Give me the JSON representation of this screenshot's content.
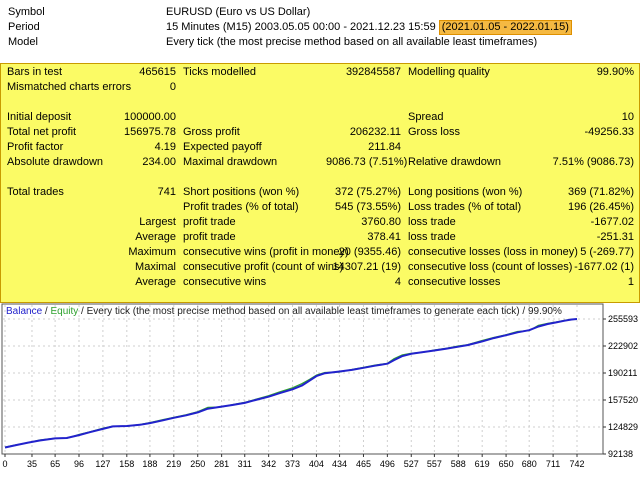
{
  "header": {
    "symbol": {
      "label": "Symbol",
      "value": "EURUSD (Euro vs US Dollar)"
    },
    "period": {
      "label": "Period",
      "value_main": "15 Minutes (M15) 2003.05.05 00:00 - 2021.12.23 15:59 ",
      "value_highlight": "(2021.01.05 - 2022.01.15)"
    },
    "model": {
      "label": "Model",
      "value": "Every tick (the most precise method based on all available least timeframes)"
    }
  },
  "stats": {
    "rows": [
      [
        "Bars in test",
        "465615",
        "Ticks modelled",
        "392845587",
        "Modelling quality",
        "99.90%"
      ],
      [
        "Mismatched charts errors",
        "0",
        "",
        "",
        "",
        ""
      ],
      [
        "",
        "",
        "",
        "",
        "",
        ""
      ],
      [
        "Initial deposit",
        "100000.00",
        "",
        "",
        "Spread",
        "10"
      ],
      [
        "Total net profit",
        "156975.78",
        "Gross profit",
        "206232.11",
        "Gross loss",
        "-49256.33"
      ],
      [
        "Profit factor",
        "4.19",
        "Expected payoff",
        "211.84",
        "",
        ""
      ],
      [
        "Absolute drawdown",
        "234.00",
        "Maximal drawdown",
        "9086.73 (7.51%)",
        "Relative drawdown",
        "7.51% (9086.73)"
      ],
      [
        "",
        "",
        "",
        "",
        "",
        ""
      ],
      [
        "Total trades",
        "741",
        "Short positions (won %)",
        "372 (75.27%)",
        "Long positions (won %)",
        "369 (71.82%)"
      ],
      [
        "",
        "",
        "Profit trades (% of total)",
        "545 (73.55%)",
        "Loss trades (% of total)",
        "196 (26.45%)"
      ],
      [
        "",
        "Largest",
        "profit trade",
        "3760.80",
        "loss trade",
        "-1677.02"
      ],
      [
        "",
        "Average",
        "profit trade",
        "378.41",
        "loss trade",
        "-251.31"
      ],
      [
        "",
        "Maximum",
        "consecutive wins (profit in money)",
        "20 (9355.46)",
        "consecutive losses (loss in money)",
        "5 (-269.77)"
      ],
      [
        "",
        "Maximal",
        "consecutive profit (count of wins)",
        "14307.21 (19)",
        "consecutive loss (count of losses)",
        "-1677.02 (1)"
      ],
      [
        "",
        "Average",
        "consecutive wins",
        "4",
        "consecutive losses",
        "1"
      ]
    ]
  },
  "colors": {
    "table_bg": "#FBFB65",
    "table_border": "#C89B00",
    "highlight_bg": "#F5B942",
    "highlight_border": "#DE9000",
    "balance_line": "#2222CC",
    "equity_line": "#2DA12D",
    "grid_line": "#CFCFCF",
    "plot_border": "#555555"
  },
  "chart_data": {
    "type": "line",
    "legend": {
      "balance": "Balance",
      "equity": "Equity",
      "model": "Every tick (the most precise method based on all available least timeframes to generate each tick)",
      "quality": "99.90%",
      "separator": " / "
    },
    "xlabel": "",
    "ylabel": "",
    "grid": "dashed",
    "x_ticks": [
      0,
      35,
      65,
      96,
      127,
      158,
      188,
      219,
      250,
      281,
      311,
      342,
      373,
      404,
      434,
      465,
      496,
      527,
      557,
      588,
      619,
      650,
      680,
      711,
      742
    ],
    "y_ticks": [
      92138,
      124829,
      157520,
      190211,
      222902,
      255593
    ],
    "xlim": [
      0,
      775
    ],
    "ylim": [
      92138,
      273700
    ],
    "x": [
      0,
      15,
      30,
      45,
      65,
      80,
      96,
      110,
      127,
      140,
      158,
      175,
      188,
      205,
      219,
      235,
      250,
      263,
      281,
      295,
      311,
      325,
      342,
      355,
      373,
      385,
      395,
      404,
      415,
      434,
      450,
      465,
      480,
      496,
      505,
      515,
      527,
      542,
      557,
      572,
      588,
      600,
      619,
      634,
      650,
      665,
      680,
      692,
      704,
      715,
      726,
      735,
      742
    ],
    "series": [
      {
        "name": "Equity",
        "color": "#2DA12D",
        "width": 1.2,
        "values": [
          100500,
          103400,
          105700,
          109100,
          111300,
          111100,
          115700,
          119000,
          123400,
          125900,
          125700,
          127800,
          130100,
          133800,
          136500,
          139700,
          143400,
          148600,
          149000,
          151900,
          154600,
          158400,
          162700,
          167000,
          172300,
          177200,
          182500,
          187700,
          190800,
          191400,
          194400,
          197100,
          199800,
          202000,
          207800,
          212000,
          214200,
          215100,
          218000,
          220100,
          222900,
          224500,
          229700,
          233300,
          236600,
          240400,
          241500,
          248000,
          250300,
          252000,
          253900,
          255300,
          255600
        ]
      },
      {
        "name": "Balance",
        "color": "#2222CC",
        "width": 2,
        "values": [
          100000,
          103000,
          106000,
          108500,
          111000,
          111500,
          115000,
          118500,
          122500,
          125500,
          126000,
          127500,
          129500,
          133000,
          136000,
          139000,
          142500,
          147000,
          149500,
          151500,
          154000,
          157500,
          161500,
          165500,
          170500,
          175000,
          181000,
          186500,
          190000,
          192000,
          194000,
          196500,
          199000,
          201500,
          206000,
          210500,
          213500,
          215500,
          217500,
          219500,
          222000,
          224000,
          228500,
          232500,
          236000,
          239500,
          242000,
          246500,
          249500,
          251500,
          253500,
          255000,
          255600
        ]
      }
    ]
  }
}
